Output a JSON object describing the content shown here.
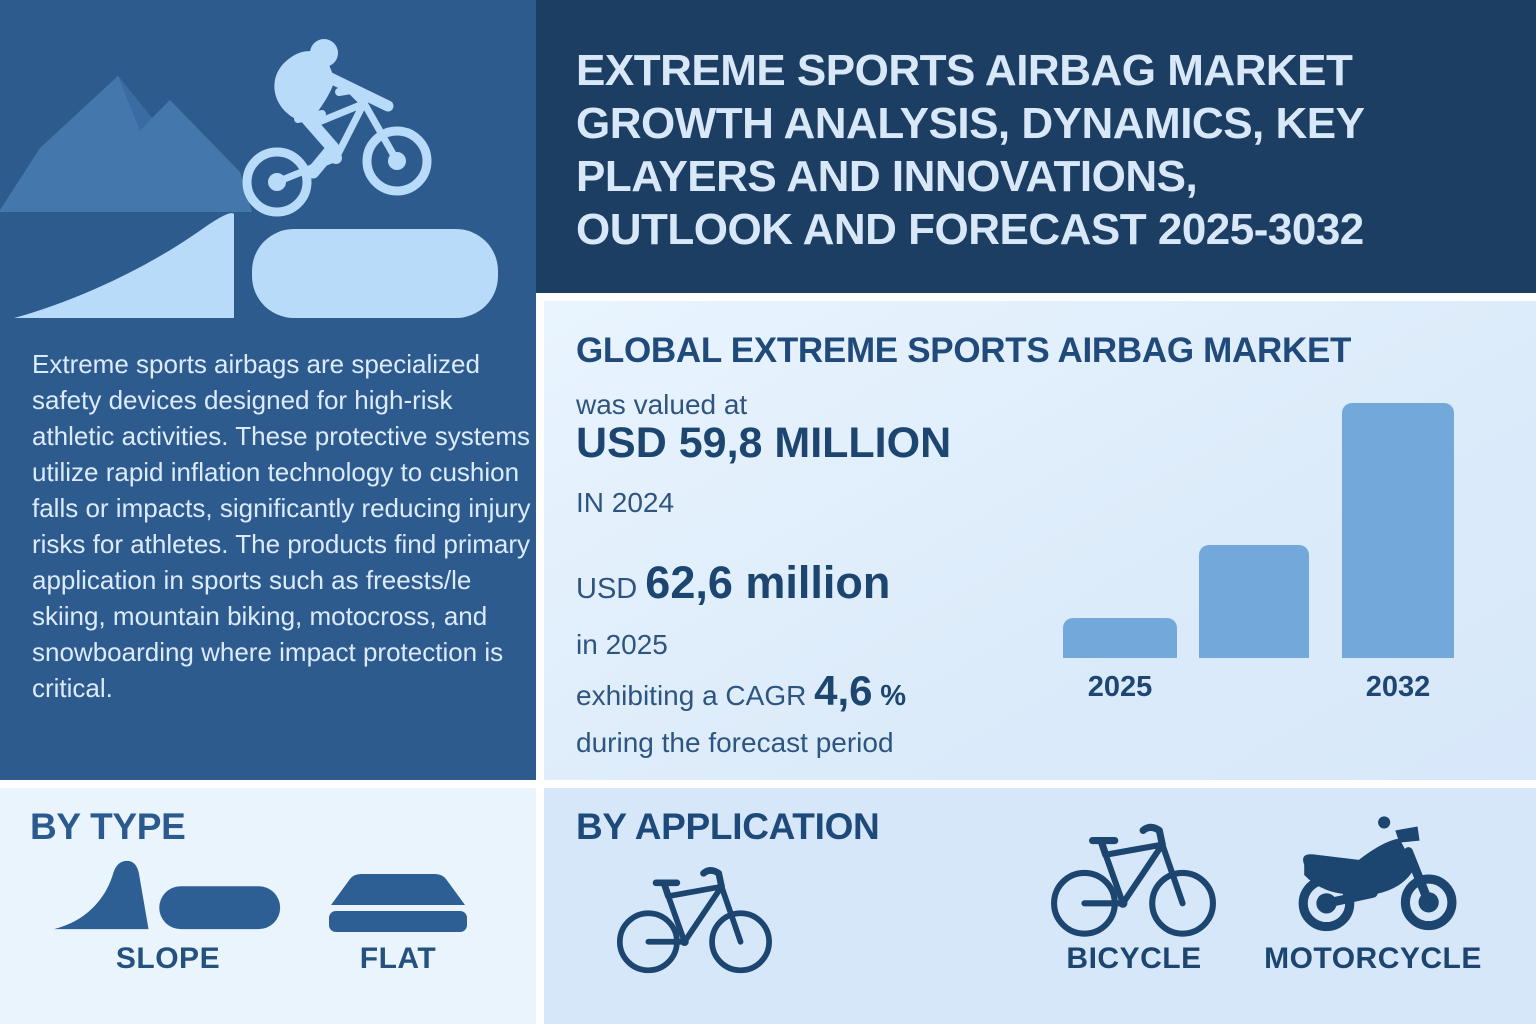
{
  "header": {
    "lines": [
      "EXTREME SPORTS AIRBAG MARKET",
      "GROWTH ANALYSIS, DYNAMICS, KEY",
      "PLAYERS AND INNOVATIONS,",
      "OUTLOOK AND FORECAST 2025-3032"
    ]
  },
  "hero": {
    "icon": "mountain-bike-jump-illustration"
  },
  "about": {
    "text": "Extreme sports airbags are specialized safety devices designed for high-risk athletic activities. These protective systems utilize rapid inflation technology to cushion falls or impacts, significantly reducing injury risks for athletes. The products find primary application in sports such as freests/le skiing, mountain biking, motocross, and snowboarding where impact protection is critical."
  },
  "market": {
    "heading": "GLOBAL EXTREME SPORTS AIRBAG MARKET",
    "valued_prefix": "was valued at",
    "value_2024": "USD 59,8 MILLION",
    "year_2024": "IN 2024",
    "usd_label": "USD",
    "value_2025": "62,6 million",
    "year_2025": "in 2025",
    "cagr_prefix": "exhibiting a CAGR",
    "cagr_value": "4,6",
    "cagr_unit": "%",
    "forecast_note": "during the forecast period"
  },
  "chart_data": {
    "type": "bar",
    "categories": [
      "2025",
      "",
      "2032"
    ],
    "values": [
      40,
      113,
      255
    ],
    "values_note": "illustrative growth bars, no numeric axis shown; heights are relative (px). Known values from text: USD 62,6 million in 2025, CAGR 4,6% to 2032",
    "title": "GLOBAL EXTREME SPORTS AIRBAG MARKET",
    "xlabel": "",
    "ylabel": "",
    "grid": false,
    "legend": "none",
    "annotations": [
      "USD 59,8 MILLION IN 2024",
      "USD 62,6 million in 2025",
      "CAGR 4,6 % during the forecast period"
    ],
    "bar_color": "#72a9da",
    "trend_arrow_color": "#26517d"
  },
  "by_type": {
    "heading": "BY TYPE",
    "items": [
      {
        "label": "SLOPE",
        "icon": "slope-airbag-icon"
      },
      {
        "label": "FLAT",
        "icon": "flat-airbag-icon"
      }
    ]
  },
  "by_application": {
    "heading": "BY APPLICATION",
    "items": [
      {
        "label": "BICYCLE",
        "icon": "bicycle-icon"
      },
      {
        "label": "MOTORCYCLE",
        "icon": "motorcycle-icon"
      }
    ],
    "decorative_icon": "bicycle-icon"
  },
  "colors": {
    "header_bg": "#1d3e63",
    "left_panel_bg": "#2e5b8e",
    "market_panel_bg": "#ddebfa",
    "by_type_panel_bg": "#eaf4fd",
    "by_application_panel_bg": "#d7e7fa",
    "bar": "#72a9da",
    "dark_navy_text": "#1c456f",
    "mid_blue_text": "#2e5580",
    "heading_blue": "#1f4a7a",
    "light_text": "#dcebfb",
    "silhouette": "#b7dbf8",
    "mountain": "#4478ad"
  }
}
